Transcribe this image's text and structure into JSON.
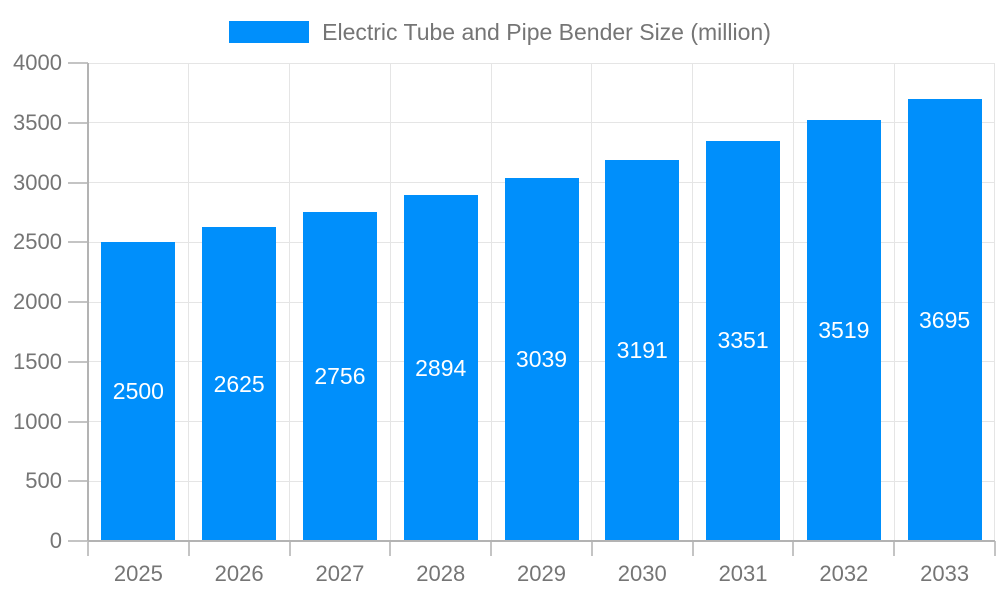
{
  "legend": {
    "label": "Electric Tube and Pipe Bender Size (million)"
  },
  "chart_data": {
    "type": "bar",
    "title": "Electric Tube and Pipe Bender Size (million)",
    "categories": [
      "2025",
      "2026",
      "2027",
      "2028",
      "2029",
      "2030",
      "2031",
      "2032",
      "2033"
    ],
    "values": [
      2500,
      2625,
      2756,
      2894,
      3039,
      3191,
      3351,
      3519,
      3695
    ],
    "xlabel": "",
    "ylabel": "",
    "ylim": [
      0,
      4000
    ],
    "ytick_step": 500,
    "yticks": [
      0,
      500,
      1000,
      1500,
      2000,
      2500,
      3000,
      3500,
      4000
    ],
    "grid": true,
    "legend_position": "top",
    "bar_labels_position": "center-inside",
    "colors": {
      "bar": "#008FFB",
      "bar_label_text": "#FFFFFF",
      "axis_text": "#757575",
      "axis_line": "#B3B3B3",
      "tick_line": "#C4C4C4",
      "gridline": "#E5E5E5",
      "background": "#FFFFFF"
    }
  }
}
